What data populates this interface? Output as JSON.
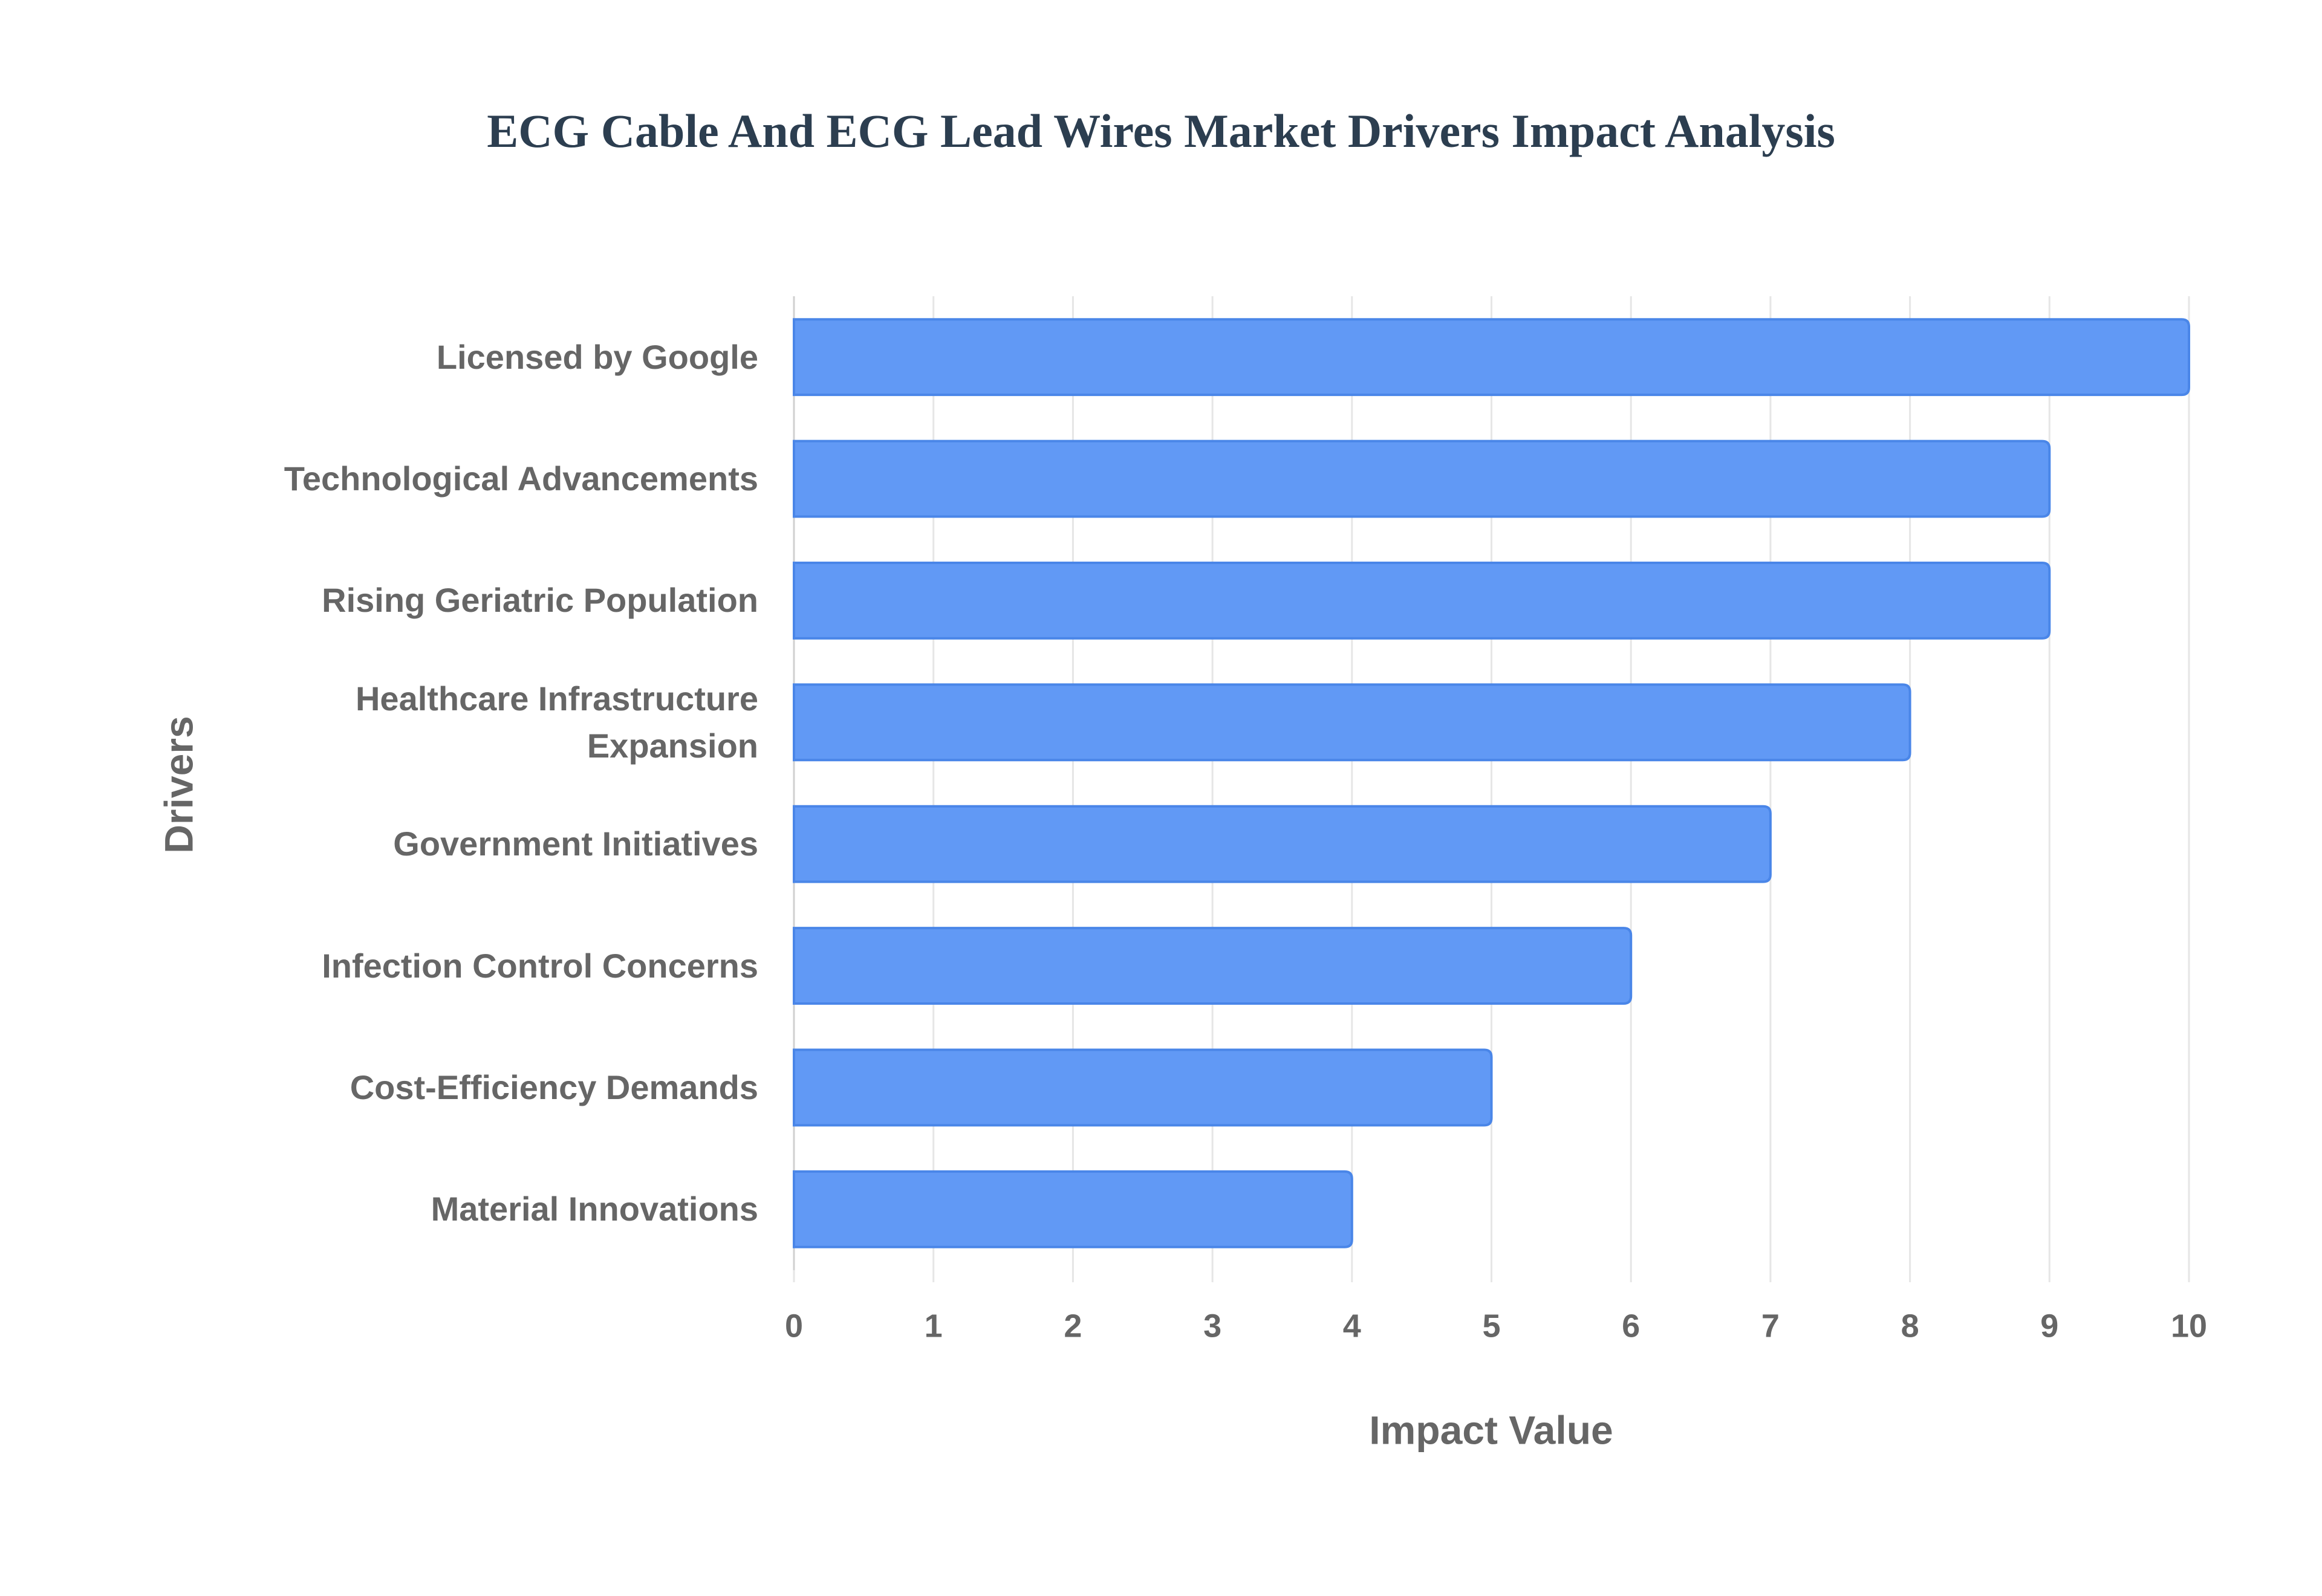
{
  "chart_data": {
    "type": "bar",
    "orientation": "horizontal",
    "title": "ECG Cable And ECG Lead Wires Market Drivers Impact Analysis",
    "x_label": "Impact Value",
    "y_label": "Drivers",
    "categories": [
      "Licensed by Google",
      "Technological Advancements",
      "Rising Geriatric Population",
      "Healthcare Infrastructure Expansion",
      "Government Initiatives",
      "Infection Control Concerns",
      "Cost-Efficiency Demands",
      "Material Innovations"
    ],
    "values": [
      10,
      9,
      9,
      8,
      7,
      6,
      5,
      4
    ],
    "color": "#6199f5",
    "edge_color": "#4a86e8",
    "xlim": [
      0,
      10
    ],
    "xticks": [
      0,
      1,
      2,
      3,
      4,
      5,
      6,
      7,
      8,
      9,
      10
    ],
    "grid": true
  }
}
